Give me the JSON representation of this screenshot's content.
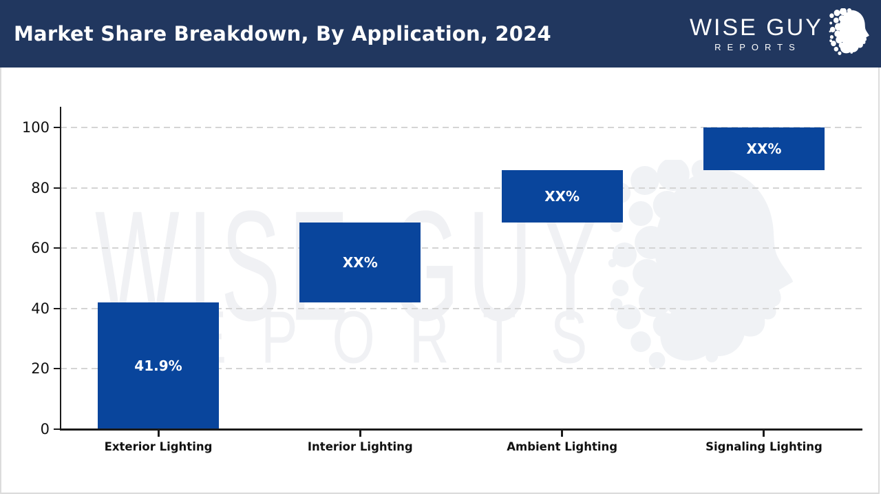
{
  "header": {
    "title": "Market Share Breakdown, By Application, 2024",
    "logo": {
      "brand": "WISE GUY",
      "sub": "REPORTS"
    }
  },
  "watermark": {
    "line1": "WISE GUY",
    "line2": "REPORTS"
  },
  "colors": {
    "header_bg": "#21375f",
    "title_text": "#ffffff",
    "bar": "#09459c",
    "bar_label": "#ffffff",
    "grid": "#d4d4d4",
    "axis": "#1a1a1a",
    "watermark": "#f0f1f4",
    "border": "#dcdcdc"
  },
  "chart_data": {
    "type": "bar",
    "subtype": "waterfall",
    "title": "Market Share Breakdown, By Application, 2024",
    "categories": [
      "Exterior Lighting",
      "Interior Lighting",
      "Ambient Lighting",
      "Signaling Lighting"
    ],
    "series": [
      {
        "name": "Market share (%)",
        "segments": [
          {
            "start": 0,
            "end": 41.9,
            "label": "41.9%"
          },
          {
            "start": 41.9,
            "end": 68.5,
            "label": "XX%"
          },
          {
            "start": 68.5,
            "end": 85.8,
            "label": "XX%"
          },
          {
            "start": 85.8,
            "end": 100,
            "label": "XX%"
          }
        ]
      }
    ],
    "xlabel": "",
    "ylabel": "",
    "ylim": [
      0,
      107
    ],
    "yticks": [
      0,
      20,
      40,
      60,
      80,
      100
    ],
    "grid": "horizontal-dashed",
    "legend": "none"
  }
}
